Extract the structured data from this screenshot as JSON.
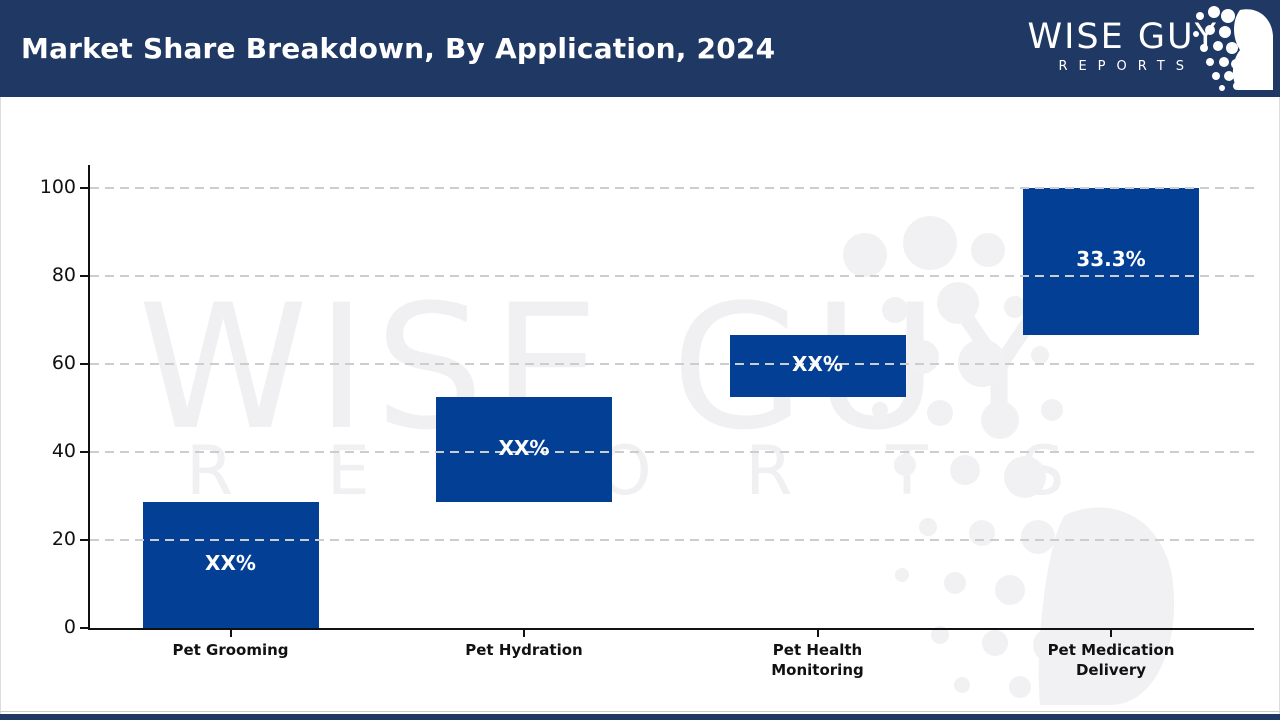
{
  "header": {
    "title": "Market Share Breakdown, By Application, 2024",
    "bg_color": "#1F3864",
    "logo": {
      "line1": "WISE GUY",
      "line2": "REPORTS"
    }
  },
  "watermark": {
    "line1": "WISE GUY",
    "line2": "R E P O R T S"
  },
  "chart_data": {
    "type": "bar",
    "subtype": "waterfall",
    "title": "Market Share Breakdown, By Application, 2024",
    "xlabel": "",
    "ylabel": "",
    "ylim": [
      0,
      100
    ],
    "yticks": [
      0,
      20,
      40,
      60,
      80,
      100
    ],
    "grid": true,
    "grid_style": "dashed",
    "legend": "none",
    "bar_color": "#034095",
    "bar_label_color": "#FFFFFF",
    "categories": [
      "Pet Grooming",
      "Pet Hydration",
      "Pet Health\nMonitoring",
      "Pet Medication\nDelivery"
    ],
    "series": [
      {
        "name": "Market Share",
        "values": [
          28.6,
          23.8,
          14.3,
          33.3
        ],
        "segments": [
          {
            "category": "Pet Grooming",
            "start": 0,
            "end": 28.6,
            "label": "XX%"
          },
          {
            "category": "Pet Hydration",
            "start": 28.6,
            "end": 52.4,
            "label": "XX%"
          },
          {
            "category": "Pet Health Monitoring",
            "start": 52.4,
            "end": 66.7,
            "label": "XX%"
          },
          {
            "category": "Pet Medication Delivery",
            "start": 66.7,
            "end": 100,
            "label": "33.3%"
          }
        ]
      }
    ]
  }
}
